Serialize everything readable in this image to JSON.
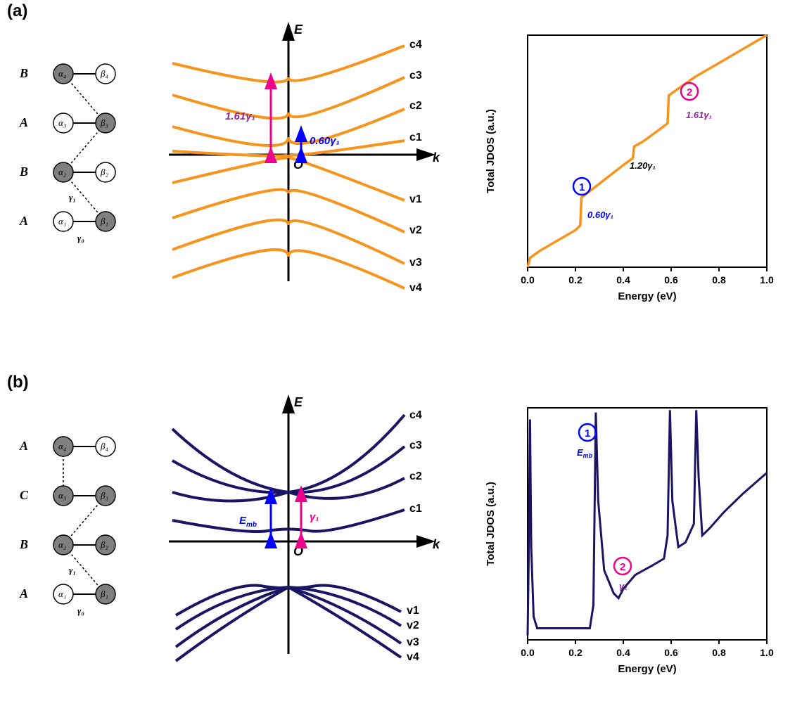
{
  "panelA": {
    "label": "(a)",
    "layers": [
      "B",
      "A",
      "B",
      "A"
    ],
    "lattice_atoms": [
      {
        "row": 0,
        "a": "α₄",
        "b": "β₄",
        "a_filled": true,
        "b_filled": false
      },
      {
        "row": 1,
        "a": "α₃",
        "b": "β₃",
        "a_filled": false,
        "b_filled": true
      },
      {
        "row": 2,
        "a": "α₂",
        "b": "β₂",
        "a_filled": true,
        "b_filled": false
      },
      {
        "row": 3,
        "a": "α₁",
        "b": "β₁",
        "a_filled": false,
        "b_filled": true
      }
    ],
    "gamma_labels": {
      "g0": "γ₀",
      "g1": "γ₁"
    },
    "band_color": "#f7941d",
    "bands": [
      "c4",
      "c3",
      "c2",
      "c1",
      "v1",
      "v2",
      "v3",
      "v4"
    ],
    "E_label": "E",
    "k_label": "k",
    "O_label": "O",
    "gap_main": {
      "label": "1.61γ₁",
      "color": "#ec008c"
    },
    "gap_small": {
      "label": "0.60γ₁",
      "color": "#0000ff"
    },
    "jdos": {
      "xlabel": "Energy (eV)",
      "ylabel": "Total JDOS (a.u.)",
      "xlim": [
        0,
        1.0
      ],
      "xticks": [
        "0.0",
        "0.2",
        "0.4",
        "0.6",
        "0.8",
        "1.0"
      ],
      "line_color": "#f7941d",
      "markers": [
        {
          "num": "1",
          "color": "#0000ff",
          "x": 0.22,
          "ylabel": "0.60γ₁"
        },
        {
          "num": "2",
          "color": "#ec008c",
          "x": 0.59,
          "ylabel": "1.61γ₁"
        }
      ],
      "mid_label": "1.20γ₁",
      "points": [
        [
          0.0,
          0.0
        ],
        [
          0.01,
          0.04
        ],
        [
          0.05,
          0.07
        ],
        [
          0.1,
          0.1
        ],
        [
          0.15,
          0.13
        ],
        [
          0.2,
          0.16
        ],
        [
          0.22,
          0.18
        ],
        [
          0.225,
          0.3
        ],
        [
          0.25,
          0.32
        ],
        [
          0.3,
          0.36
        ],
        [
          0.35,
          0.4
        ],
        [
          0.4,
          0.44
        ],
        [
          0.44,
          0.47
        ],
        [
          0.445,
          0.52
        ],
        [
          0.48,
          0.54
        ],
        [
          0.52,
          0.57
        ],
        [
          0.56,
          0.6
        ],
        [
          0.585,
          0.62
        ],
        [
          0.59,
          0.74
        ],
        [
          0.63,
          0.77
        ],
        [
          0.7,
          0.82
        ],
        [
          0.8,
          0.88
        ],
        [
          0.9,
          0.94
        ],
        [
          1.0,
          1.0
        ]
      ]
    }
  },
  "panelB": {
    "label": "(b)",
    "layers": [
      "A",
      "C",
      "B",
      "A"
    ],
    "lattice_atoms": [
      {
        "row": 0,
        "a": "α₄",
        "b": "β₄",
        "a_filled": true,
        "b_filled": false
      },
      {
        "row": 1,
        "a": "α₃",
        "b": "β₃",
        "a_filled": true,
        "b_filled": true
      },
      {
        "row": 2,
        "a": "α₂",
        "b": "β₂",
        "a_filled": true,
        "b_filled": true
      },
      {
        "row": 3,
        "a": "α₁",
        "b": "β₁",
        "a_filled": false,
        "b_filled": true
      }
    ],
    "gamma_labels": {
      "g0": "γ₀",
      "g1": "γ₁"
    },
    "band_color": "#1b1464",
    "bands": [
      "c4",
      "c3",
      "c2",
      "c1",
      "v1",
      "v2",
      "v3",
      "v4"
    ],
    "E_label": "E",
    "k_label": "k",
    "O_label": "O",
    "gap_main": {
      "label": "γ₁",
      "color": "#ec008c"
    },
    "gap_small": {
      "label": "E_mb",
      "color": "#0000ff"
    },
    "jdos": {
      "xlabel": "Energy (eV)",
      "ylabel": "Total JDOS (a.u.)",
      "xlim": [
        0,
        1.0
      ],
      "xticks": [
        "0.0",
        "0.2",
        "0.4",
        "0.6",
        "0.8",
        "1.0"
      ],
      "line_color": "#1b1464",
      "markers": [
        {
          "num": "1",
          "color": "#0000ff",
          "x": 0.28,
          "ylabel": "E_mb"
        },
        {
          "num": "2",
          "color": "#ec008c",
          "x": 0.38,
          "ylabel": "γ₁"
        }
      ],
      "points": [
        [
          0.0,
          0.02
        ],
        [
          0.005,
          0.4
        ],
        [
          0.01,
          0.95
        ],
        [
          0.015,
          0.4
        ],
        [
          0.025,
          0.1
        ],
        [
          0.04,
          0.05
        ],
        [
          0.1,
          0.05
        ],
        [
          0.2,
          0.05
        ],
        [
          0.26,
          0.05
        ],
        [
          0.275,
          0.15
        ],
        [
          0.285,
          0.98
        ],
        [
          0.295,
          0.6
        ],
        [
          0.32,
          0.3
        ],
        [
          0.36,
          0.2
        ],
        [
          0.38,
          0.18
        ],
        [
          0.4,
          0.22
        ],
        [
          0.45,
          0.28
        ],
        [
          0.52,
          0.32
        ],
        [
          0.57,
          0.35
        ],
        [
          0.585,
          0.45
        ],
        [
          0.595,
          0.99
        ],
        [
          0.605,
          0.6
        ],
        [
          0.63,
          0.4
        ],
        [
          0.66,
          0.42
        ],
        [
          0.695,
          0.5
        ],
        [
          0.705,
          0.99
        ],
        [
          0.715,
          0.7
        ],
        [
          0.73,
          0.45
        ],
        [
          0.76,
          0.48
        ],
        [
          0.82,
          0.55
        ],
        [
          0.9,
          0.63
        ],
        [
          1.0,
          0.72
        ]
      ]
    }
  },
  "colors": {
    "filled_atom": "#808080",
    "empty_stroke": "#000000",
    "axis": "#000000"
  }
}
